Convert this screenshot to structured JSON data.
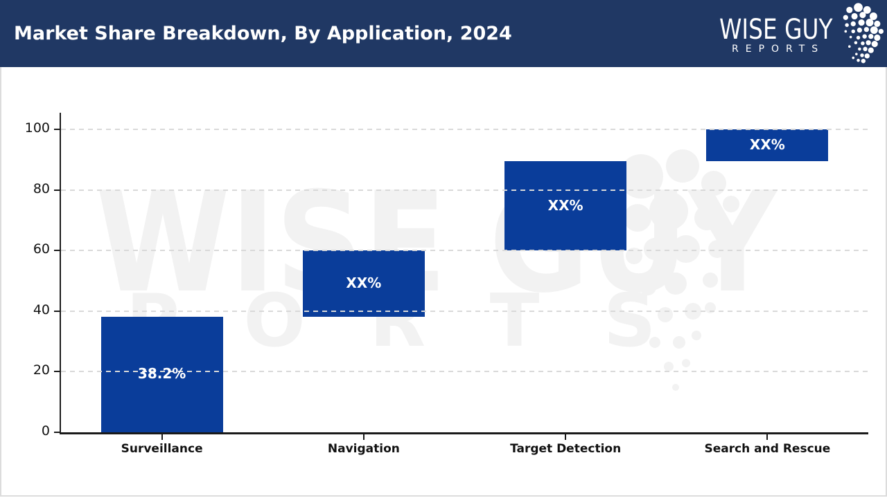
{
  "header": {
    "title": "Market Share Breakdown, By Application, 2024",
    "bg_color": "#203864",
    "logo": {
      "line1": "WISE GUY",
      "line2": "REPORTS"
    }
  },
  "watermark": {
    "line1": "WISE GUY",
    "line2": "P O R T S"
  },
  "chart_data": {
    "type": "bar",
    "subtype": "waterfall",
    "title": "Market Share Breakdown, By Application, 2024",
    "xlabel": "",
    "ylabel": "",
    "ylim": [
      0,
      105
    ],
    "y_ticks": [
      0,
      20,
      40,
      60,
      80,
      100
    ],
    "grid": "horizontal dashed, drawn over bars",
    "bar_color": "#0a3d9a",
    "value_label_color": "#ffffff",
    "categories": [
      "Surveillance",
      "Navigation",
      "Target Detection",
      "Search and Rescue"
    ],
    "segments": [
      {
        "category": "Surveillance",
        "start": 0,
        "end": 38.2,
        "label": "38.2%"
      },
      {
        "category": "Navigation",
        "start": 38.2,
        "end": 60.0,
        "label": "XX%"
      },
      {
        "category": "Target Detection",
        "start": 60.0,
        "end": 89.4,
        "label": "XX%"
      },
      {
        "category": "Search and Rescue",
        "start": 89.4,
        "end": 100.0,
        "label": "XX%"
      }
    ]
  }
}
